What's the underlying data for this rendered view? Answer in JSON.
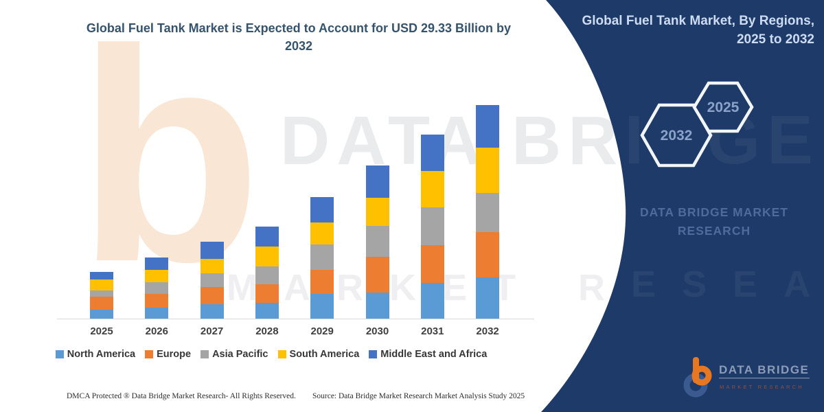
{
  "title": {
    "line1": "Global Fuel Tank Market is Expected to Account for USD 29.33 Billion by",
    "line2": "2032"
  },
  "panel": {
    "heading_line1": "Global Fuel Tank Market, By Regions,",
    "heading_line2": "2025 to 2032",
    "hexagon_back_label": "2032",
    "hexagon_front_label": "2025",
    "watermark_line1": "DATA BRIDGE MARKET",
    "watermark_line2": "RESEARCH",
    "logo_name": "DATA BRIDGE",
    "logo_subtitle": "MARKET RESEARCH"
  },
  "watermarks": {
    "letter": "b",
    "big_text": "DATA BRIDGE",
    "spaced_text": "MARKET RESEARCH"
  },
  "chart_data": {
    "type": "bar",
    "stacked": true,
    "unit": "USD Billion",
    "categories": [
      "2025",
      "2026",
      "2027",
      "2028",
      "2029",
      "2030",
      "2031",
      "2032"
    ],
    "series": [
      {
        "name": "North America",
        "color": "#5B9BD5",
        "values": [
          1.2,
          1.5,
          2.0,
          2.2,
          3.4,
          3.6,
          4.9,
          5.65
        ]
      },
      {
        "name": "Europe",
        "color": "#ED7D31",
        "values": [
          1.8,
          1.9,
          2.3,
          2.5,
          3.3,
          4.9,
          5.2,
          6.2
        ]
      },
      {
        "name": "Asia Pacific",
        "color": "#A5A5A5",
        "values": [
          0.9,
          1.6,
          1.9,
          2.5,
          3.5,
          4.2,
          5.2,
          5.4
        ]
      },
      {
        "name": "South America",
        "color": "#FFC000",
        "values": [
          1.5,
          1.7,
          2.0,
          2.7,
          3.0,
          3.9,
          5.0,
          6.2
        ]
      },
      {
        "name": "Middle East and Africa",
        "color": "#4472C4",
        "values": [
          1.0,
          1.7,
          2.4,
          2.7,
          3.5,
          4.4,
          5.0,
          5.88
        ]
      }
    ],
    "totals": [
      6.4,
      8.4,
      10.6,
      12.6,
      16.7,
      21.0,
      25.3,
      29.33
    ],
    "title": "Global Fuel Tank Market is Expected to Account for USD 29.33 Billion by 2032",
    "xlabel": "",
    "ylabel": "",
    "ylim": [
      0,
      30
    ],
    "grid": false,
    "legend_position": "bottom",
    "note": "segment values estimated from bar heights; 2032 total labeled as USD 29.33 Billion"
  },
  "footer": {
    "left": "DMCA Protected ® Data Bridge Market Research-  All Rights Reserved.",
    "right": "Source: Data Bridge Market Research Market Analysis Study 2025"
  },
  "colors": {
    "panel_navy": "#1E3A68",
    "brand_orange": "#E87722",
    "title_text": "#35536C",
    "panel_heading_text": "#CDDCF2",
    "hexagon_outline": "#F2F6FB",
    "hexagon_label_text": "#8AA3C9"
  }
}
